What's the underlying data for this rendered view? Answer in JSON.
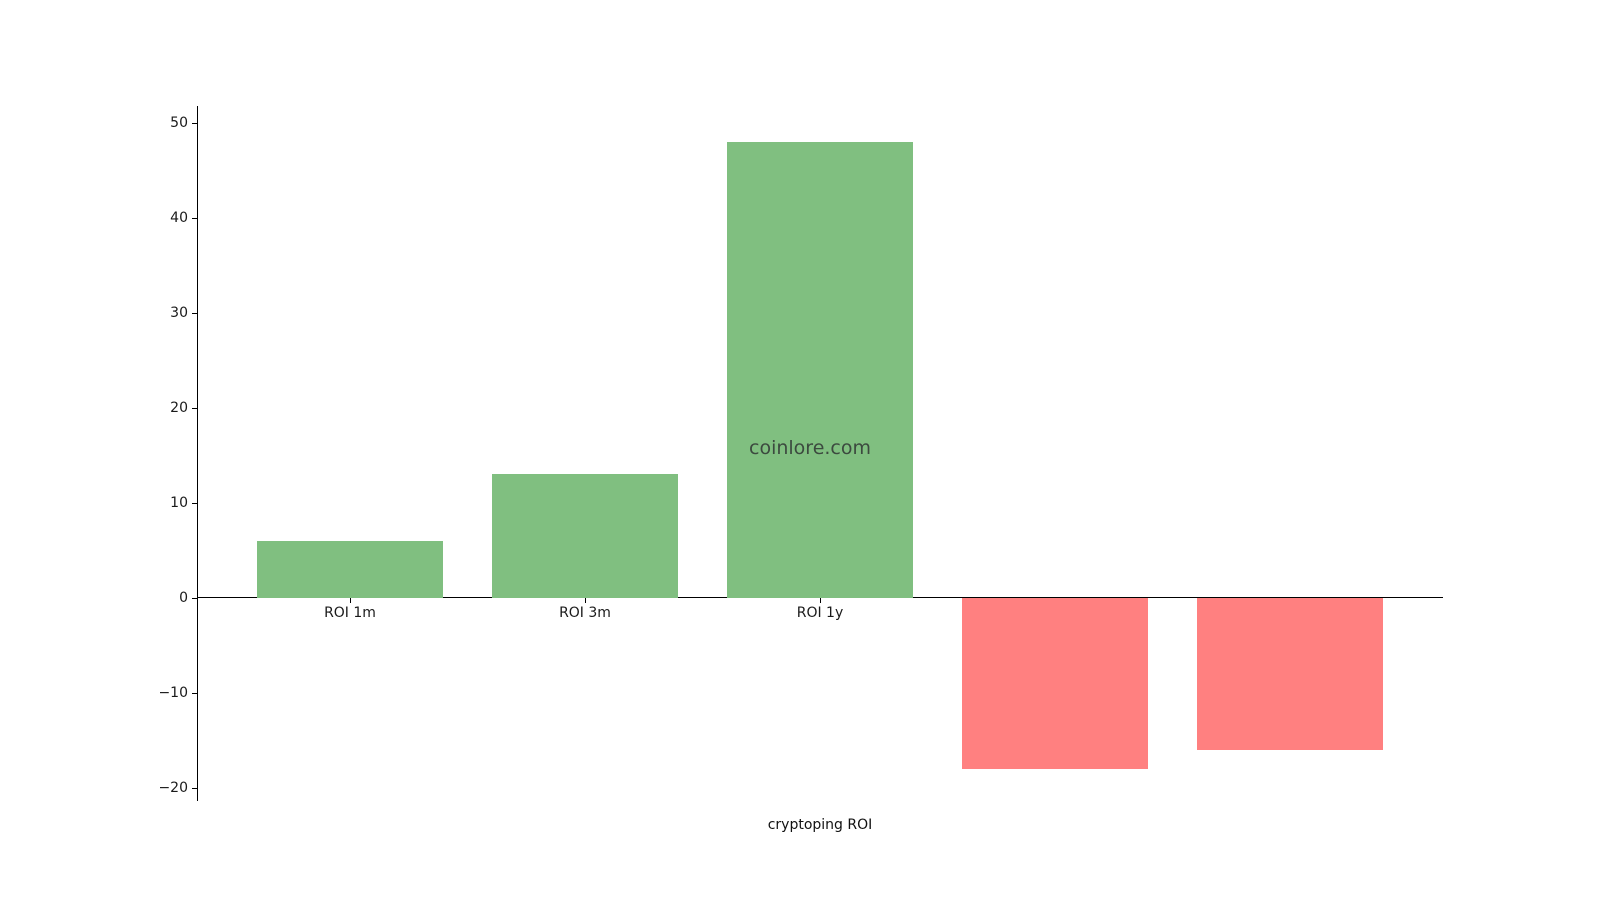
{
  "chart_data": {
    "type": "bar",
    "categories": [
      "ROI 1m",
      "ROI 3m",
      "ROI 1y",
      "",
      ""
    ],
    "values": [
      6,
      13,
      48,
      -18,
      -16
    ],
    "title": "cryptoping ROI",
    "xlabel": "",
    "ylabel": "",
    "ylim": [
      -21.5,
      51.5
    ],
    "yticks": [
      50,
      40,
      30,
      20,
      10,
      0,
      -10,
      -20
    ],
    "ytick_labels": [
      "50",
      "40",
      "30",
      "20",
      "10",
      "0",
      "−10",
      "−20"
    ],
    "grid": false,
    "legend_position": "none",
    "positive_color": "#80bf80",
    "negative_color": "#ff8080",
    "axis_color": "#000000",
    "tick_label_color": "#1a1a1a"
  },
  "watermark": {
    "text": "coinlore.com",
    "color": "#3c4a3f"
  }
}
